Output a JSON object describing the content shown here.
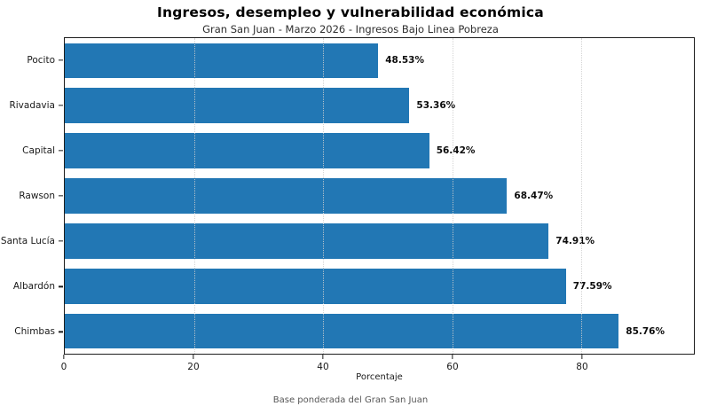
{
  "header": {
    "title": "Ingresos, desempleo y vulnerabilidad económica",
    "subtitle": "Gran San Juan - Marzo 2026 - Ingresos Bajo Linea Pobreza"
  },
  "footer": {
    "note": "Base ponderada del Gran San Juan"
  },
  "colors": {
    "bar": "#2277b4",
    "frame": "#1d1d1d",
    "grid": "#cccccc",
    "value_label": "#0d0d0d",
    "footer_text": "#565656"
  },
  "chart_data": {
    "type": "bar",
    "orientation": "horizontal",
    "title": "Ingresos, desempleo y vulnerabilidad económica",
    "subtitle": "Gran San Juan - Marzo 2026 - Ingresos Bajo Linea Pobreza",
    "xlabel": "Porcentaje",
    "ylabel": "",
    "categories": [
      "Pocito",
      "Rivadavia",
      "Capital",
      "Rawson",
      "Santa Lucía",
      "Albardón",
      "Chimbas"
    ],
    "values": [
      48.53,
      53.36,
      56.42,
      68.47,
      74.91,
      77.59,
      85.76
    ],
    "value_labels": [
      "48.53%",
      "53.36%",
      "56.42%",
      "68.47%",
      "74.91%",
      "77.59%",
      "85.76%"
    ],
    "xticks": [
      0,
      20,
      40,
      60,
      80
    ],
    "xtick_labels": [
      "0",
      "20",
      "40",
      "60",
      "80"
    ],
    "xlim": [
      0,
      97.4
    ],
    "grid": "vertical-dotted",
    "legend": "none",
    "caption": "Base ponderada del Gran San Juan"
  }
}
